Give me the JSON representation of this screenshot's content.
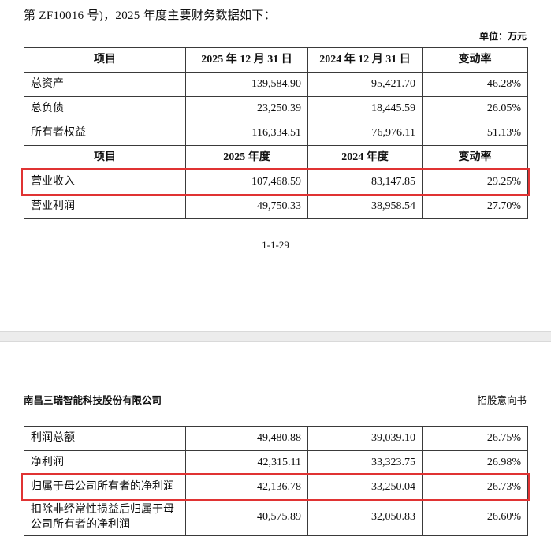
{
  "page1": {
    "intro_text": "第 ZF10016 号)，2025 年度主要财务数据如下：",
    "unit_label": "单位：万元",
    "table": {
      "header_balance": [
        "项目",
        "2025 年 12 月 31 日",
        "2024 年 12 月 31 日",
        "变动率"
      ],
      "balance_rows": [
        [
          "总资产",
          "139,584.90",
          "95,421.70",
          "46.28%"
        ],
        [
          "总负债",
          "23,250.39",
          "18,445.59",
          "26.05%"
        ],
        [
          "所有者权益",
          "116,334.51",
          "76,976.11",
          "51.13%"
        ]
      ],
      "header_income": [
        "项目",
        "2025 年度",
        "2024 年度",
        "变动率"
      ],
      "income_rows": [
        [
          "营业收入",
          "107,468.59",
          "83,147.85",
          "29.25%"
        ],
        [
          "营业利润",
          "49,750.33",
          "38,958.54",
          "27.70%"
        ]
      ]
    },
    "page_number": "1-1-29"
  },
  "page2": {
    "header_left": "南昌三瑞智能科技股份有限公司",
    "header_right": "招股意向书",
    "table_rows": [
      [
        "利润总额",
        "49,480.88",
        "39,039.10",
        "26.75%"
      ],
      [
        "净利润",
        "42,315.11",
        "33,323.75",
        "26.98%"
      ],
      [
        "归属于母公司所有者的净利润",
        "42,136.78",
        "33,250.04",
        "26.73%"
      ],
      [
        "扣除非经常性损益后归属于母公司所有者的净利润",
        "40,575.89",
        "32,050.83",
        "26.60%"
      ]
    ]
  },
  "highlight": {
    "color": "#e03333"
  }
}
